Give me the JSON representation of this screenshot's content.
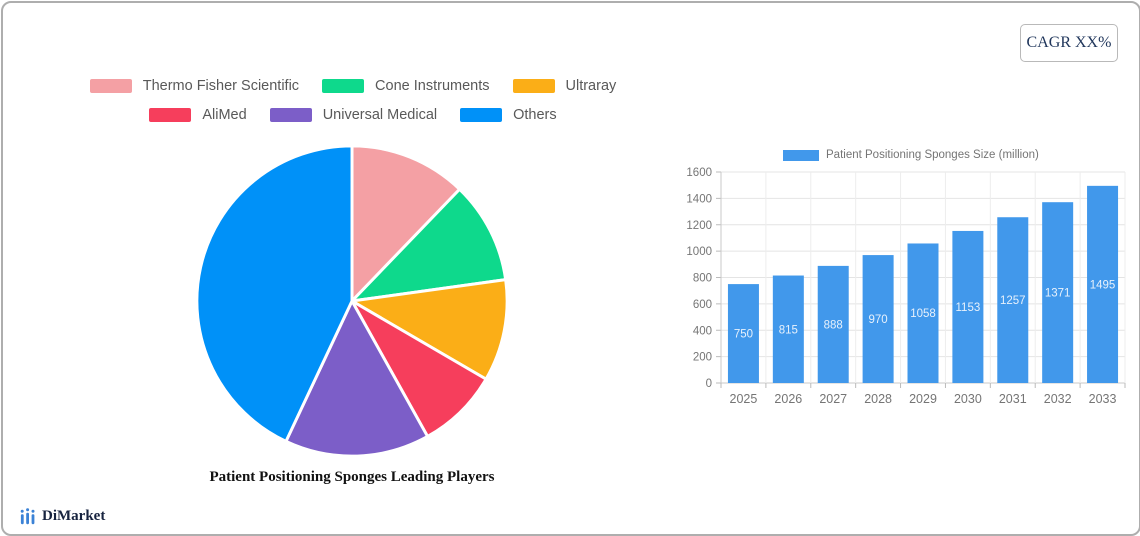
{
  "cagr": {
    "label": "CAGR XX%"
  },
  "logo": {
    "text": "DiMarket",
    "icon": "bar-chart-icon",
    "icon_color": "#3b82d6"
  },
  "chart_data": [
    {
      "type": "pie",
      "title": "Patient Positioning Sponges Leading Players",
      "labels": [
        "Thermo Fisher Scientific",
        "Cone Instruments",
        "Ultraray",
        "AliMed",
        "Universal Medical",
        "Others"
      ],
      "values": [
        12.2,
        10.6,
        10.6,
        8.5,
        15.1,
        43.0
      ],
      "colors": [
        "#F4A0A4",
        "#0ED98C",
        "#FBAE17",
        "#F63E5C",
        "#7C5EC8",
        "#0091F8"
      ],
      "start_angle": "12 o'clock, clockwise",
      "legend_position": "top",
      "legend_rows": [
        3,
        3
      ],
      "slice_border_color": "#ffffff"
    },
    {
      "type": "bar",
      "legend": "Patient Positioning Sponges Size (million)",
      "categories": [
        "2025",
        "2026",
        "2027",
        "2028",
        "2029",
        "2030",
        "2031",
        "2032",
        "2033"
      ],
      "values": [
        750,
        815,
        888,
        970,
        1058,
        1153,
        1257,
        1371,
        1495
      ],
      "ylim": [
        0,
        1600
      ],
      "yticks": [
        0,
        200,
        400,
        600,
        800,
        1000,
        1200,
        1400,
        1600
      ],
      "bar_color": "#4198EB",
      "value_label_color": "#E7F1FC",
      "axis_label_color": "#757575",
      "grid": true,
      "legend_position": "top"
    }
  ]
}
